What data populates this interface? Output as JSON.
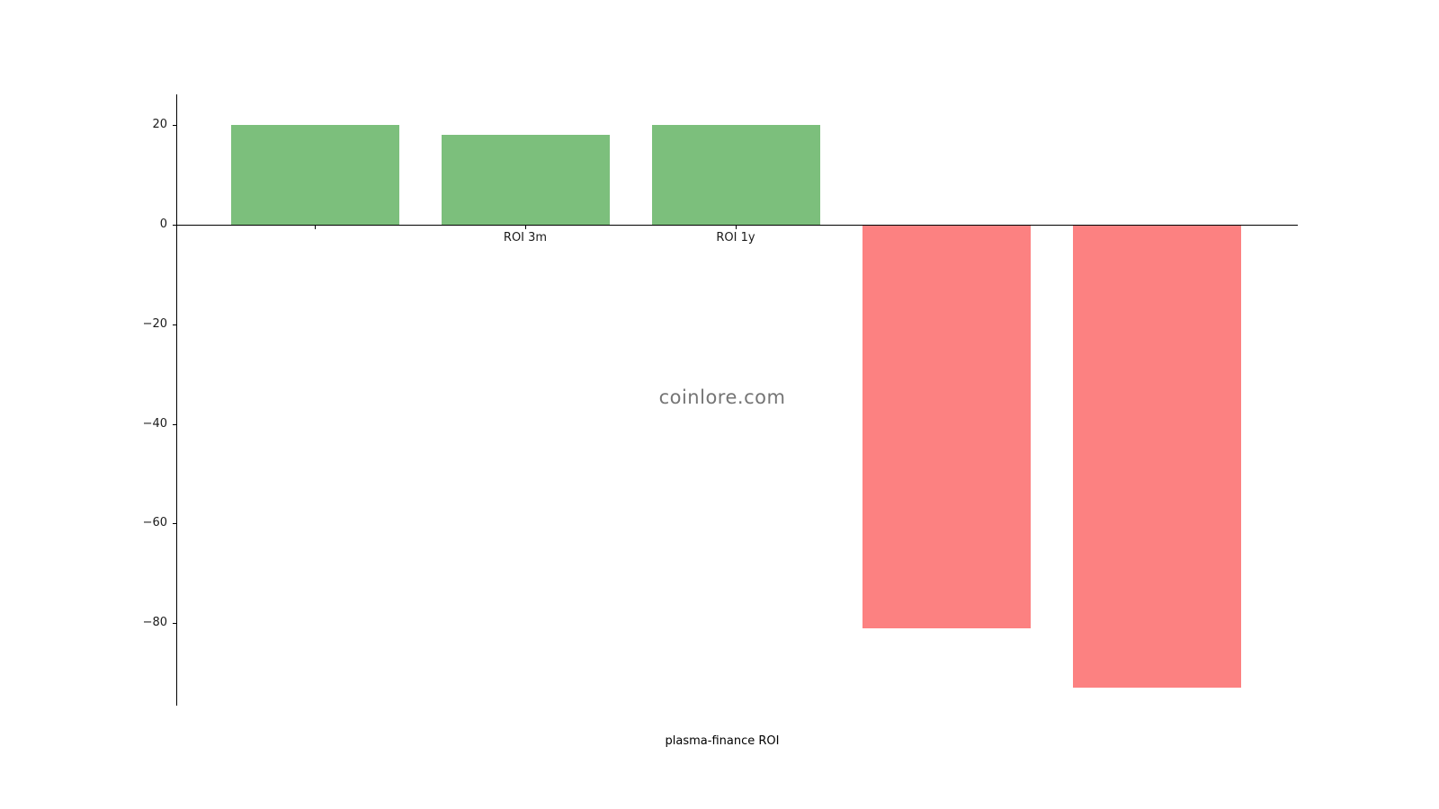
{
  "watermark": {
    "text": "coinlore.com",
    "color": "#757575"
  },
  "chart_data": {
    "type": "bar",
    "title": "plasma-finance ROI",
    "categories": [
      "",
      "ROI 3m",
      "ROI 1y",
      "",
      ""
    ],
    "values": [
      20,
      18,
      20,
      -81,
      -93
    ],
    "series": [
      {
        "name": "ROI",
        "values": [
          20,
          18,
          20,
          -81,
          -93
        ]
      }
    ],
    "x_ticks": [
      {
        "index": 0,
        "label": ""
      },
      {
        "index": 1,
        "label": "ROI 3m"
      },
      {
        "index": 2,
        "label": "ROI 1y"
      }
    ],
    "y_ticks": [
      {
        "value": 20,
        "label": "20"
      },
      {
        "value": 0,
        "label": "0"
      },
      {
        "value": -20,
        "label": "−20"
      },
      {
        "value": -40,
        "label": "−40"
      },
      {
        "value": -60,
        "label": "−60"
      },
      {
        "value": -80,
        "label": "−80"
      }
    ],
    "ylim": [
      -96.6,
      26.2
    ],
    "xlabel": "",
    "ylabel": "",
    "grid": false,
    "legend_position": "none",
    "positive_color": "#7cbf7c",
    "negative_color": "#fc8181",
    "axis_color": "#000000"
  }
}
